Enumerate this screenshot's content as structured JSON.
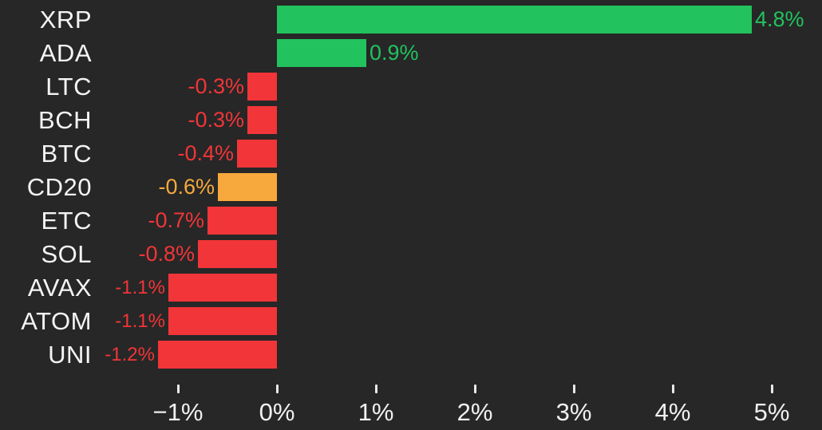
{
  "chart_data": {
    "type": "bar",
    "orientation": "horizontal",
    "title": "",
    "xlabel": "",
    "ylabel": "",
    "grid": false,
    "legend": null,
    "xlim": [
      -2.8,
      5.5
    ],
    "categories": [
      "XRP",
      "ADA",
      "LTC",
      "BCH",
      "BTC",
      "CD20",
      "ETC",
      "SOL",
      "AVAX",
      "ATOM",
      "UNI"
    ],
    "values": [
      4.8,
      0.9,
      -0.3,
      -0.3,
      -0.4,
      -0.6,
      -0.7,
      -0.8,
      -1.1,
      -1.1,
      -1.2
    ],
    "value_labels": [
      "4.8%",
      "0.9%",
      "-0.3%",
      "-0.3%",
      "-0.4%",
      "-0.6%",
      "-0.7%",
      "-0.8%",
      "-1.1%",
      "-1.1%",
      "-1.2%"
    ],
    "colors": [
      "green",
      "green",
      "red",
      "red",
      "red",
      "orange",
      "red",
      "red",
      "red",
      "red",
      "red"
    ],
    "small_value_label": [
      false,
      false,
      false,
      false,
      false,
      false,
      false,
      false,
      true,
      true,
      true
    ],
    "x_ticks": [
      {
        "label": "−1%",
        "value": -1
      },
      {
        "label": "0%",
        "value": 0
      },
      {
        "label": "1%",
        "value": 1
      },
      {
        "label": "2%",
        "value": 2
      },
      {
        "label": "3%",
        "value": 3
      },
      {
        "label": "4%",
        "value": 4
      },
      {
        "label": "5%",
        "value": 5
      }
    ],
    "palette": {
      "green": "#22c25e",
      "red": "#f23538",
      "orange": "#f8a93d",
      "category_text": "#f4f4f4",
      "axis_text": "#f0f0f0",
      "tick_mark": "#e9e9e9",
      "background": "#272727"
    }
  }
}
